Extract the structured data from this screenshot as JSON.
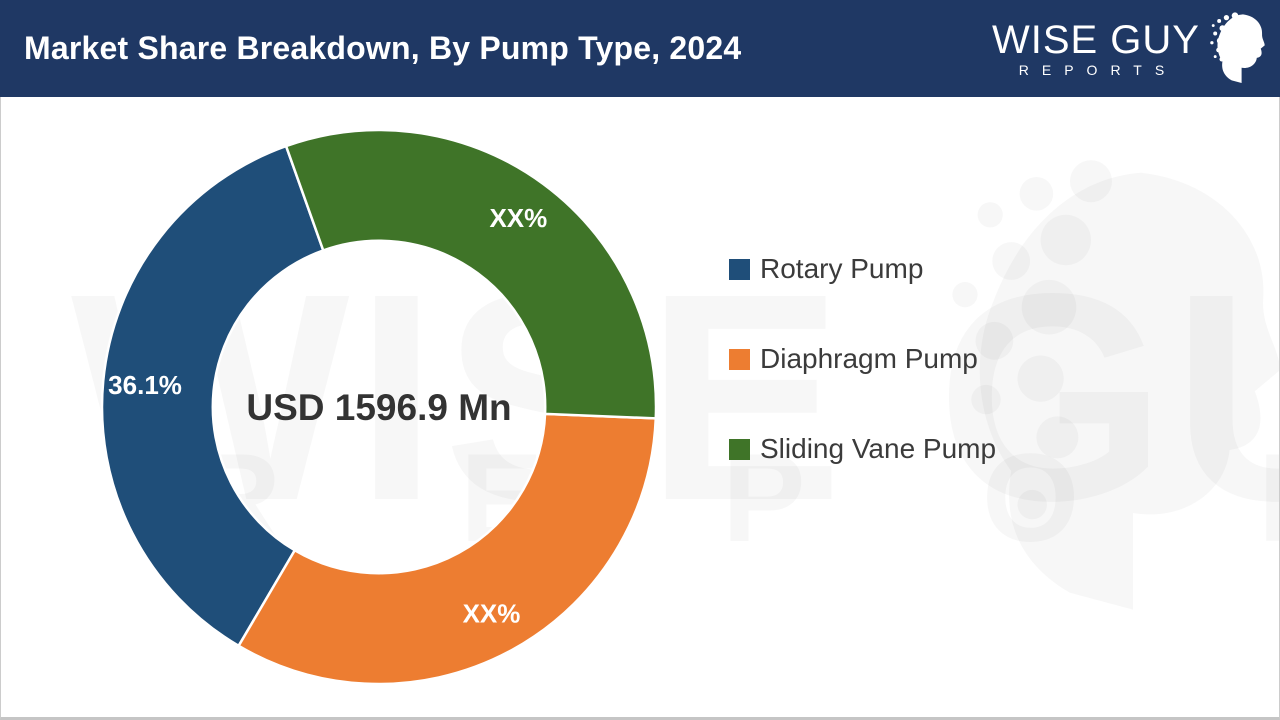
{
  "header": {
    "title": "Market Share Breakdown, By Pump Type, 2024",
    "bg_color": "#1F3864",
    "logo": {
      "line1": "WISE GUY",
      "line2": "REPORTS"
    }
  },
  "chart_data": {
    "type": "pie",
    "subtype": "donut",
    "title": "Market Share Breakdown, By Pump Type, 2024",
    "center_label": "USD 1596.9 Mn",
    "unit": "% market share",
    "segments": [
      {
        "name": "Rotary Pump",
        "value_pct": 36.1,
        "label": "36.1%",
        "color": "#1F4E79"
      },
      {
        "name": "Diaphragm Pump",
        "value_pct": 32.8,
        "label": "XX%",
        "color": "#ED7D31"
      },
      {
        "name": "Sliding Vane Pump",
        "value_pct": 31.1,
        "label": "XX%",
        "color": "#3F7428"
      }
    ],
    "layout": {
      "start_angle_deg": 109.6,
      "direction": "counterclockwise",
      "inner_radius_ratio": 0.6,
      "legend_position": "right",
      "separator_color": "#ffffff"
    }
  },
  "watermark": {
    "line1": "WISE GUY",
    "line2": "R E P O R T S"
  }
}
